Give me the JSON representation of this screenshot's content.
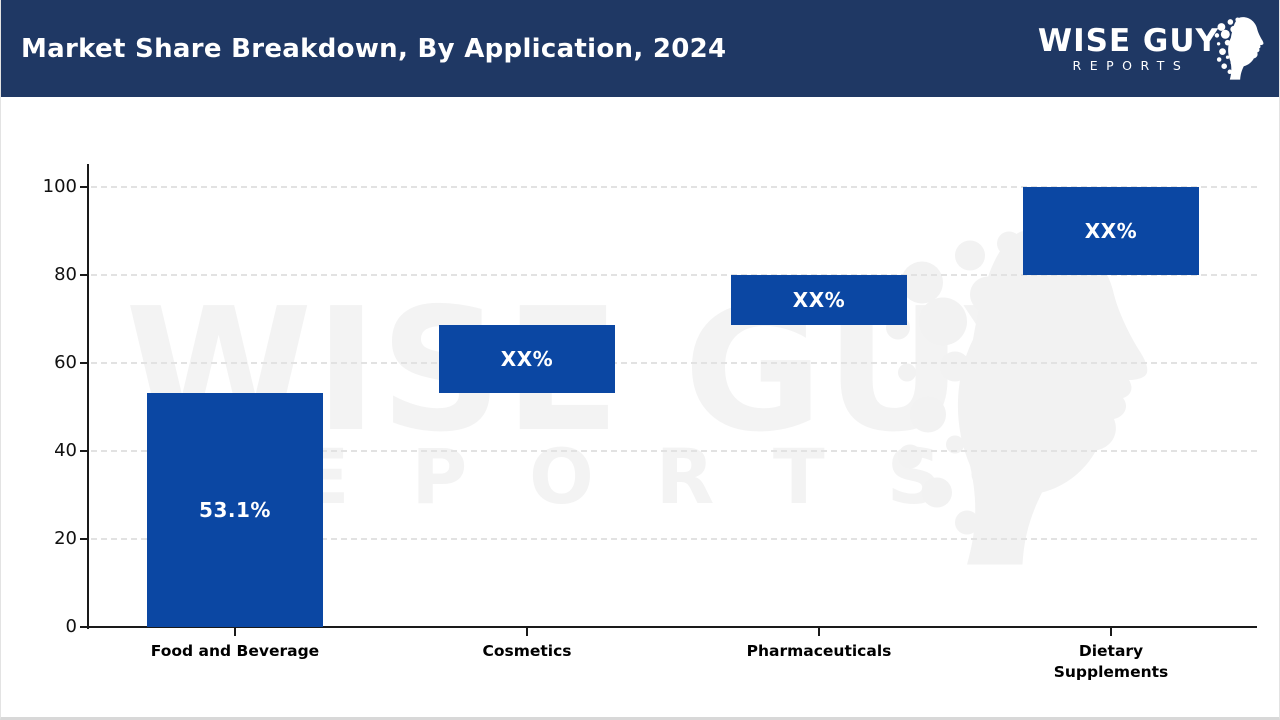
{
  "header": {
    "title": "Market Share Breakdown, By Application, 2024",
    "logo": {
      "line1": "WISE GUY",
      "line2": "REPORTS"
    }
  },
  "watermark": {
    "line1": "WISE GUY",
    "line2": "REPORTS"
  },
  "colors": {
    "header_bg": "#1F3864",
    "bar": "#0B47A3",
    "bar_label": "#FFFFFF",
    "grid": "#E2E2E2",
    "axis": "#1A1A1A",
    "watermark": "#F3F3F3"
  },
  "chart_data": {
    "type": "bar",
    "variant": "waterfall",
    "title": "Market Share Breakdown, By Application, 2024",
    "categories": [
      "Food and Beverage",
      "Cosmetics",
      "Pharmaceuticals",
      "Dietary Supplements"
    ],
    "category_labels_display": [
      "Food and Beverage",
      "Cosmetics",
      "Pharmaceuticals",
      "Dietary\nSupplements"
    ],
    "bars": [
      {
        "category": "Food and Beverage",
        "start": 0,
        "end": 53.1,
        "label": "53.1%"
      },
      {
        "category": "Cosmetics",
        "start": 53.1,
        "end": 68.6,
        "label": "XX%"
      },
      {
        "category": "Pharmaceuticals",
        "start": 68.6,
        "end": 80,
        "label": "XX%"
      },
      {
        "category": "Dietary Supplements",
        "start": 80,
        "end": 100,
        "label": "XX%"
      }
    ],
    "xlabel": "",
    "ylabel": "",
    "ylim": [
      0,
      100
    ],
    "yticks": [
      0,
      20,
      40,
      60,
      80,
      100
    ],
    "grid": "horizontal dashed",
    "legend": "none",
    "bar_color": "#0B47A3",
    "bar_label_color": "#FFFFFF"
  }
}
